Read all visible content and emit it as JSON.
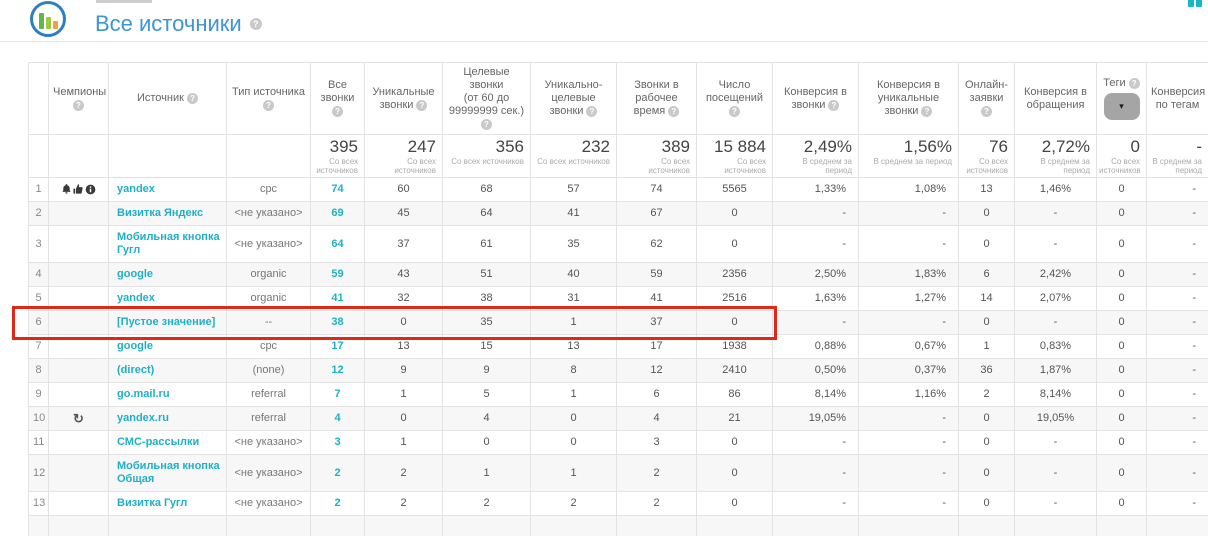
{
  "header": {
    "title": "Все источники",
    "title_icon": "bar-chart-icon",
    "help_icon": "?",
    "corner_icon": "panel-toggle-icon"
  },
  "icons": {
    "help": "?",
    "refresh": "↻",
    "caret": "▾"
  },
  "colors": {
    "title_blue": "#3d94d6",
    "link_teal": "#1fb0c6",
    "highlight_red": "#e22718",
    "tags_button_gray": "#a5a5a5",
    "bar_green": "#64b54a",
    "bar_lightgreen": "#9ecb3b",
    "bar_orange": "#f0a03c"
  },
  "table": {
    "columns": [
      {
        "label": "Чемпионы",
        "help": true
      },
      {
        "label": "Источник",
        "help": true
      },
      {
        "label": "Тип источника",
        "help": true
      },
      {
        "label": "Все звонки",
        "help": true
      },
      {
        "label": "Уникальные звонки",
        "help": true
      },
      {
        "label": "Целевые звонки",
        "label2": "(от 60 до 99999999 сек.)",
        "help": true
      },
      {
        "label": "Уникально-целевые звонки",
        "help": true
      },
      {
        "label": "Звонки в рабочее время",
        "help": true
      },
      {
        "label": "Число посещений",
        "help": true
      },
      {
        "label": "Конверсия в звонки",
        "help": true
      },
      {
        "label": "Конверсия в уникальные звонки",
        "help": true
      },
      {
        "label": "Онлайн-заявки",
        "help": true
      },
      {
        "label": "Конверсия в обращения",
        "help": false
      },
      {
        "label": "Теги",
        "help": true,
        "dropdown": true
      },
      {
        "label": "Конверсия по тегам",
        "help": false
      }
    ],
    "totals": {
      "values": [
        "395",
        "247",
        "356",
        "232",
        "389",
        "15 884",
        "2,49%",
        "1,56%",
        "76",
        "2,72%",
        "0",
        "-"
      ],
      "captions": [
        "Со всех источников",
        "Со всех источников",
        "Со всех источников",
        "Со всех источников",
        "Со всех источников",
        "Со всех источников",
        "В среднем за период",
        "В среднем за период",
        "Со всех источников",
        "В среднем за период",
        "Со всех источников",
        "В среднем за период"
      ]
    },
    "highlight_row": 6,
    "rows": [
      {
        "num": 1,
        "champions": [
          "bell",
          "thumbs-up",
          "info"
        ],
        "source": "yandex",
        "type": "cpc",
        "cells": [
          "74",
          "60",
          "68",
          "57",
          "74",
          "5565",
          "1,33%",
          "1,08%",
          "13",
          "1,46%",
          "0",
          "-"
        ]
      },
      {
        "num": 2,
        "champions": [],
        "source": "Визитка Яндекс",
        "type": "<не указано>",
        "cells": [
          "69",
          "45",
          "64",
          "41",
          "67",
          "0",
          "-",
          "-",
          "0",
          "-",
          "0",
          "-"
        ]
      },
      {
        "num": 3,
        "champions": [],
        "source": "Мобильная кнопка Гугл",
        "type": "<не указано>",
        "cells": [
          "64",
          "37",
          "61",
          "35",
          "62",
          "0",
          "-",
          "-",
          "0",
          "-",
          "0",
          "-"
        ]
      },
      {
        "num": 4,
        "champions": [],
        "source": "google",
        "type": "organic",
        "cells": [
          "59",
          "43",
          "51",
          "40",
          "59",
          "2356",
          "2,50%",
          "1,83%",
          "6",
          "2,42%",
          "0",
          "-"
        ]
      },
      {
        "num": 5,
        "champions": [],
        "source": "yandex",
        "type": "organic",
        "cells": [
          "41",
          "32",
          "38",
          "31",
          "41",
          "2516",
          "1,63%",
          "1,27%",
          "14",
          "2,07%",
          "0",
          "-"
        ]
      },
      {
        "num": 6,
        "champions": [],
        "source": "[Пустое значение]",
        "type": "--",
        "cells": [
          "38",
          "0",
          "35",
          "1",
          "37",
          "0",
          "-",
          "-",
          "0",
          "-",
          "0",
          "-"
        ]
      },
      {
        "num": 7,
        "champions": [],
        "source": "google",
        "type": "cpc",
        "cells": [
          "17",
          "13",
          "15",
          "13",
          "17",
          "1938",
          "0,88%",
          "0,67%",
          "1",
          "0,83%",
          "0",
          "-"
        ]
      },
      {
        "num": 8,
        "champions": [],
        "source": "(direct)",
        "type": "(none)",
        "cells": [
          "12",
          "9",
          "9",
          "8",
          "12",
          "2410",
          "0,50%",
          "0,37%",
          "36",
          "1,87%",
          "0",
          "-"
        ]
      },
      {
        "num": 9,
        "champions": [],
        "source": "go.mail.ru",
        "type": "referral",
        "cells": [
          "7",
          "1",
          "5",
          "1",
          "6",
          "86",
          "8,14%",
          "1,16%",
          "2",
          "8,14%",
          "0",
          "-"
        ]
      },
      {
        "num": 10,
        "champions": [
          "refresh"
        ],
        "source": "yandex.ru",
        "type": "referral",
        "cells": [
          "4",
          "0",
          "4",
          "0",
          "4",
          "21",
          "19,05%",
          "-",
          "0",
          "19,05%",
          "0",
          "-"
        ]
      },
      {
        "num": 11,
        "champions": [],
        "source": "СМС-рассылки",
        "type": "<не указано>",
        "cells": [
          "3",
          "1",
          "0",
          "0",
          "3",
          "0",
          "-",
          "-",
          "0",
          "-",
          "0",
          "-"
        ]
      },
      {
        "num": 12,
        "champions": [],
        "source": "Мобильная кнопка Общая",
        "type": "<не указано>",
        "cells": [
          "2",
          "2",
          "1",
          "1",
          "2",
          "0",
          "-",
          "-",
          "0",
          "-",
          "0",
          "-"
        ]
      },
      {
        "num": 13,
        "champions": [],
        "source": "Визитка Гугл",
        "type": "<не указано>",
        "cells": [
          "2",
          "2",
          "2",
          "2",
          "2",
          "0",
          "-",
          "-",
          "0",
          "-",
          "0",
          "-"
        ]
      }
    ]
  }
}
